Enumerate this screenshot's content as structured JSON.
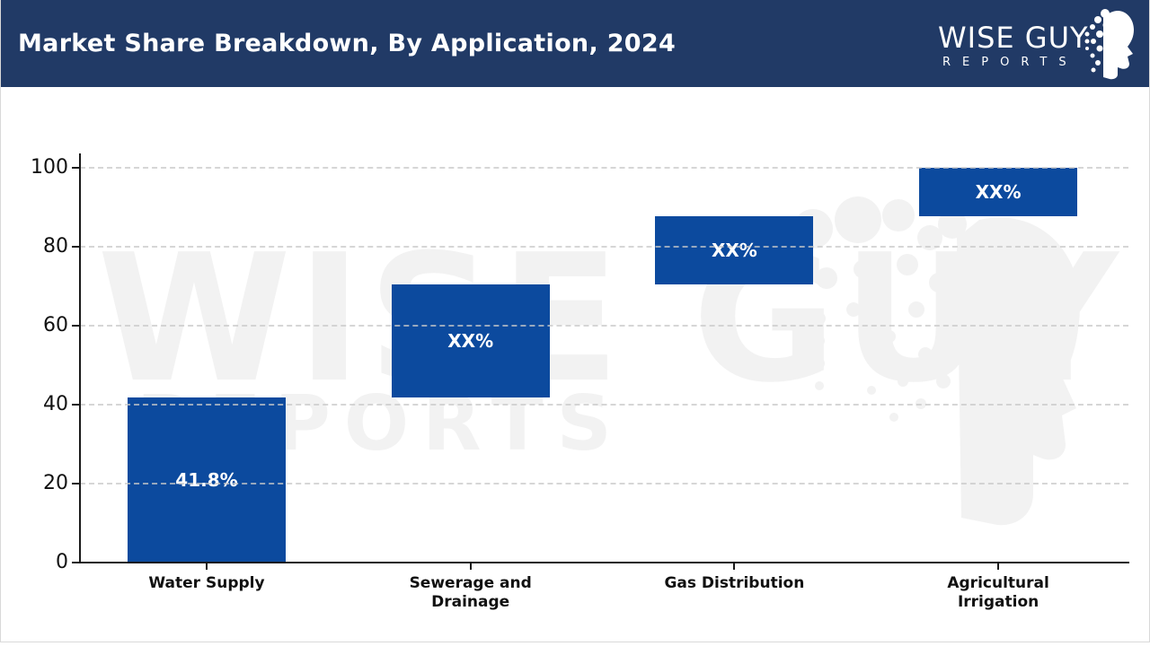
{
  "header": {
    "title": "Market Share Breakdown, By Application, 2024",
    "logo": {
      "name_line": "WISE GUY",
      "sub_line": "REPORTS"
    }
  },
  "watermark": {
    "line1": "WISE GUY",
    "line2": "REPORTS"
  },
  "colors": {
    "header_bg": "#213a66",
    "bar_fill": "#0c4a9e",
    "bar_label": "#ffffff",
    "axis": "#1a1a1a",
    "gridline": "#c9c9c9",
    "watermark": "#f2f2f2",
    "page_border": "#d9d9d9"
  },
  "chart_data": {
    "type": "bar",
    "variant": "waterfall-stacked-segments",
    "title": "Market Share Breakdown, By Application, 2024",
    "categories": [
      "Water Supply",
      "Sewerage and Drainage",
      "Gas Distribution",
      "Agricultural Irrigation"
    ],
    "segments": [
      {
        "category": "Water Supply",
        "start": 0,
        "end": 41.8,
        "label": "41.8%"
      },
      {
        "category": "Sewerage and Drainage",
        "start": 41.8,
        "end": 70.5,
        "label": "XX%"
      },
      {
        "category": "Gas Distribution",
        "start": 70.5,
        "end": 87.7,
        "label": "XX%"
      },
      {
        "category": "Agricultural Irrigation",
        "start": 87.7,
        "end": 100,
        "label": "XX%"
      }
    ],
    "ylim": [
      0,
      100
    ],
    "yticks": [
      0,
      20,
      40,
      60,
      80,
      100
    ],
    "grid": "horizontal-dashed-over-bars",
    "legend": "none"
  }
}
